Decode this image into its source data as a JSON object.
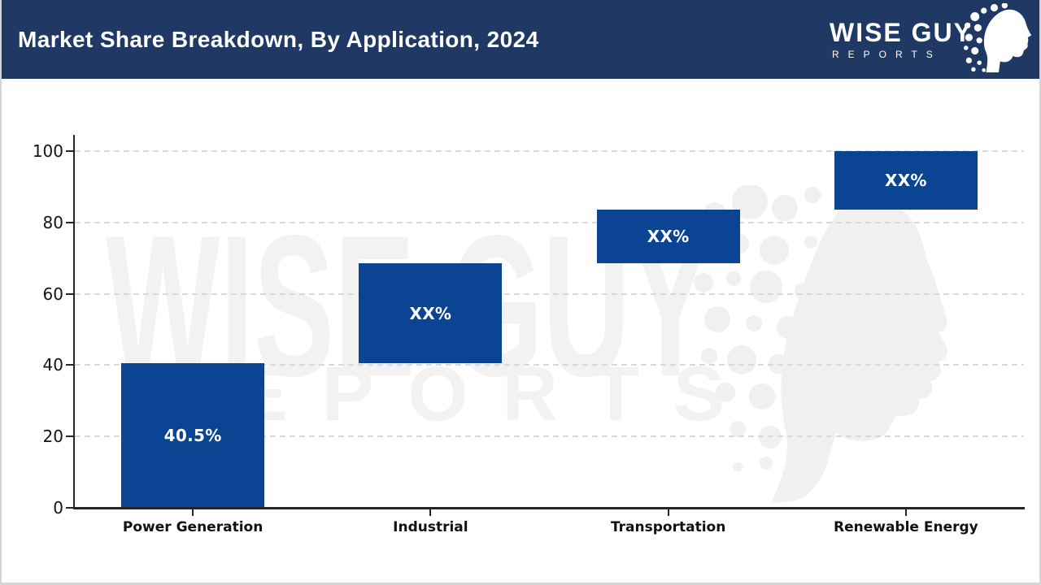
{
  "header": {
    "title": "Market Share Breakdown, By Application, 2024",
    "bg_color": "#1f3864",
    "logo": {
      "line1": "WISE GUY",
      "line2": "REPORTS"
    }
  },
  "watermark": {
    "line1": "WISE GUY",
    "line2": "REPORTS"
  },
  "chart_data": {
    "type": "bar",
    "subtype": "waterfall",
    "title": "Market Share Breakdown, By Application, 2024",
    "categories": [
      "Power Generation",
      "Industrial",
      "Transportation",
      "Renewable Energy"
    ],
    "segments": [
      {
        "category": "Power Generation",
        "start": 0,
        "end": 40.5,
        "value": 40.5,
        "label": "40.5%"
      },
      {
        "category": "Industrial",
        "start": 40.5,
        "end": 68.5,
        "value": 28,
        "label": "XX%"
      },
      {
        "category": "Transportation",
        "start": 68.5,
        "end": 83.5,
        "value": 15,
        "label": "XX%"
      },
      {
        "category": "Renewable Energy",
        "start": 83.5,
        "end": 100,
        "value": 16.5,
        "label": "XX%"
      }
    ],
    "xlabel": "",
    "ylabel": "",
    "ylim": [
      0,
      105
    ],
    "yticks": [
      0,
      20,
      40,
      60,
      80,
      100
    ],
    "grid": "horizontal-dashed",
    "legend": "none",
    "bar_color": "#0a4492",
    "bar_label_color": "#ffffff",
    "axis_color": "#262626",
    "gridline_color": "#d9d9d9"
  }
}
